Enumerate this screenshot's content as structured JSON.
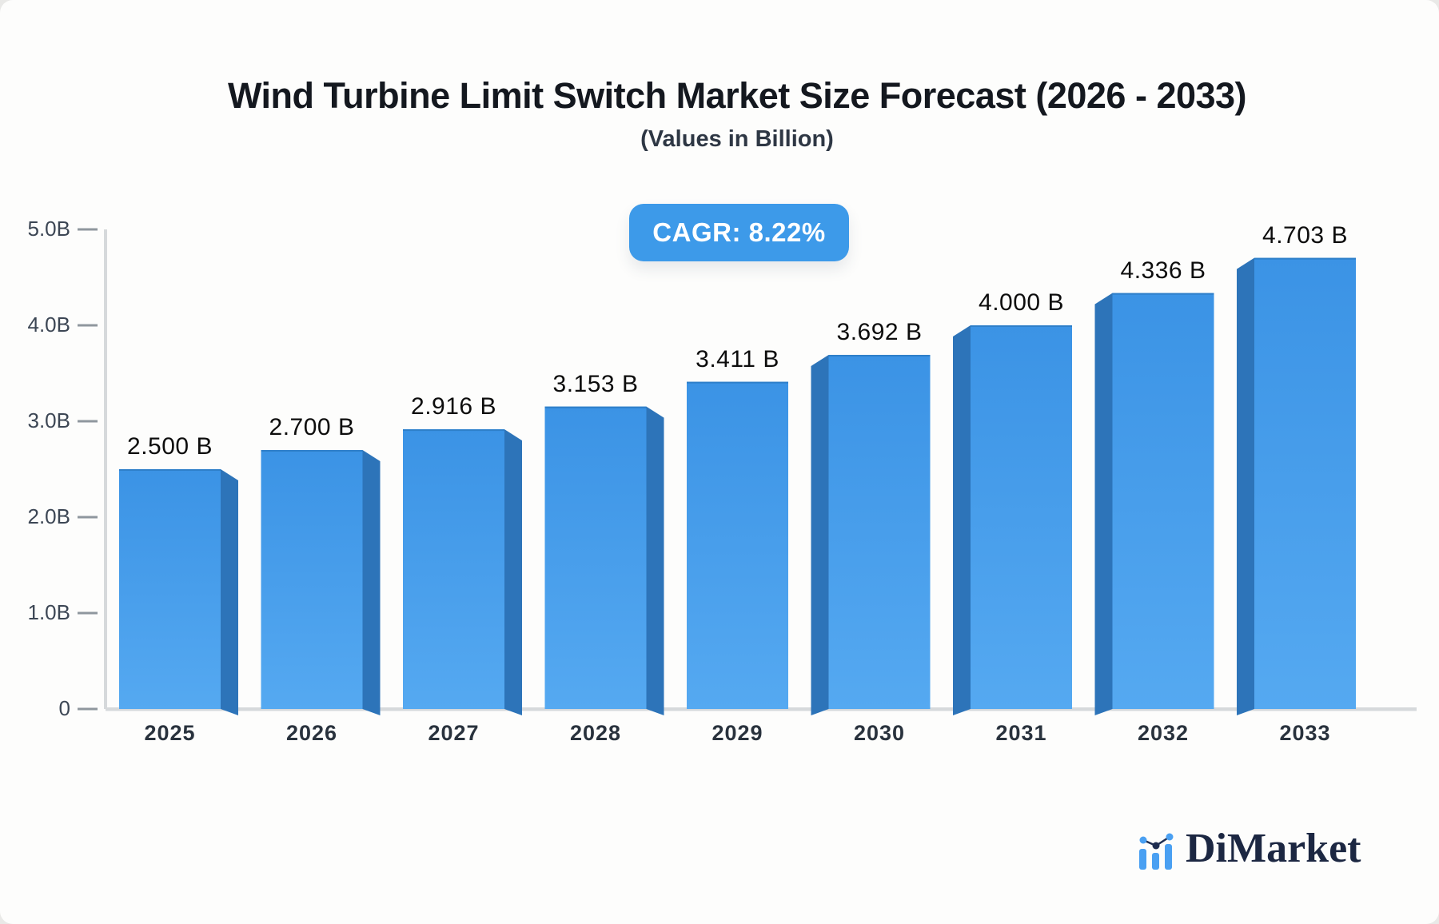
{
  "header": {
    "title": "Wind Turbine Limit Switch Market Size Forecast (2026 - 2033)",
    "subtitle": "(Values in Billion)"
  },
  "badge": {
    "label": "CAGR: 8.22%",
    "color": "#3d9ae9"
  },
  "chart_data": {
    "type": "bar",
    "title": "Wind Turbine Limit Switch Market Size Forecast (2026 - 2033)",
    "subtitle": "(Values in Billion)",
    "cagr_label": "CAGR: 8.22%",
    "categories": [
      "2025",
      "2026",
      "2027",
      "2028",
      "2029",
      "2030",
      "2031",
      "2032",
      "2033"
    ],
    "values": [
      2.5,
      2.7,
      2.916,
      3.153,
      3.411,
      3.692,
      4.0,
      4.336,
      4.703
    ],
    "value_labels": [
      "2.500 B",
      "2.700 B",
      "2.916 B",
      "3.153 B",
      "3.411 B",
      "3.692 B",
      "4.000 B",
      "4.336 B",
      "4.703 B"
    ],
    "y_ticks": [
      {
        "value": 0,
        "label": "0"
      },
      {
        "value": 1,
        "label": "1.0B"
      },
      {
        "value": 2,
        "label": "2.0B"
      },
      {
        "value": 3,
        "label": "3.0B"
      },
      {
        "value": 4,
        "label": "4.0B"
      },
      {
        "value": 5,
        "label": "5.0B"
      }
    ],
    "ylim": [
      0,
      5
    ],
    "grid": "off",
    "legend": "none",
    "bar_face_color_top": "#3b93e5",
    "bar_face_color_bottom": "#55a9f1",
    "bar_side_color": "#2d74b9",
    "bar_top_edge_color": "#2e7fc9",
    "axis_color": "#d6d9db",
    "tick_color": "#8f979e"
  },
  "logo": {
    "name": "DiMarket",
    "icon": "bar-line-chart-icon",
    "icon_color": "#4aa0f2",
    "icon_accent_color": "#1e2d50",
    "text_color": "#1c2742"
  }
}
